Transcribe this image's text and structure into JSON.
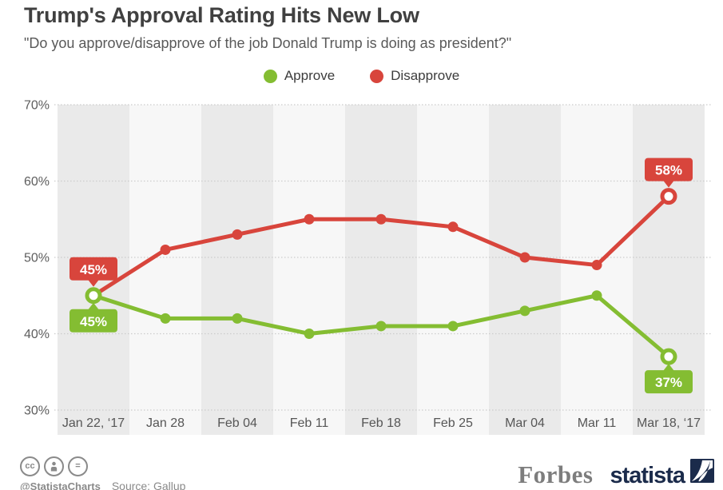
{
  "header": {
    "title": "Trump's Approval Rating Hits New Low",
    "subtitle": "\"Do you approve/disapprove of the job Donald Trump is doing as president?\""
  },
  "chart_data": {
    "type": "line",
    "categories": [
      "Jan 22, ‘17",
      "Jan 28",
      "Feb 04",
      "Feb 11",
      "Feb 18",
      "Feb 25",
      "Mar 04",
      "Mar 11",
      "Mar 18, ‘17"
    ],
    "series": [
      {
        "name": "Approve",
        "color": "#84bd32",
        "values": [
          45,
          42,
          42,
          40,
          41,
          41,
          43,
          45,
          37
        ],
        "open_markers": [
          0,
          8
        ]
      },
      {
        "name": "Disapprove",
        "color": "#d8453c",
        "values": [
          45,
          51,
          53,
          55,
          55,
          54,
          50,
          49,
          58
        ],
        "open_markers": [
          8
        ]
      }
    ],
    "ylim": [
      30,
      70
    ],
    "yticks": [
      30,
      40,
      50,
      60,
      70
    ],
    "ytick_suffix": "%",
    "grid": "horizontal-dotted",
    "legend_position": "top-center",
    "annotations": [
      {
        "series": "Disapprove",
        "index": 0,
        "label": "45%",
        "placement": "above"
      },
      {
        "series": "Approve",
        "index": 0,
        "label": "45%",
        "placement": "below"
      },
      {
        "series": "Disapprove",
        "index": 8,
        "label": "58%",
        "placement": "above"
      },
      {
        "series": "Approve",
        "index": 8,
        "label": "37%",
        "placement": "below"
      }
    ]
  },
  "footer": {
    "license_badges": [
      {
        "icon": "cc-icon",
        "glyph": "cc"
      },
      {
        "icon": "attribution-person-icon",
        "glyph": ""
      },
      {
        "icon": "equals-icon",
        "glyph": "="
      }
    ],
    "handle": "@StatistaCharts",
    "source": "Source: Gallup",
    "brands": {
      "forbes": "Forbes",
      "statista": "statista"
    }
  },
  "colors": {
    "approve_green": "#84bd32",
    "disapprove_red": "#d8453c",
    "band_dark": "#eaeaea",
    "band_light": "#f7f7f7",
    "gridline": "#cccccc",
    "title_text": "#404040",
    "subtitle_text": "#595959",
    "axis_text": "#5e5e5e",
    "footer_gray": "#8a8a8a",
    "statista_navy": "#1b2b4b"
  }
}
